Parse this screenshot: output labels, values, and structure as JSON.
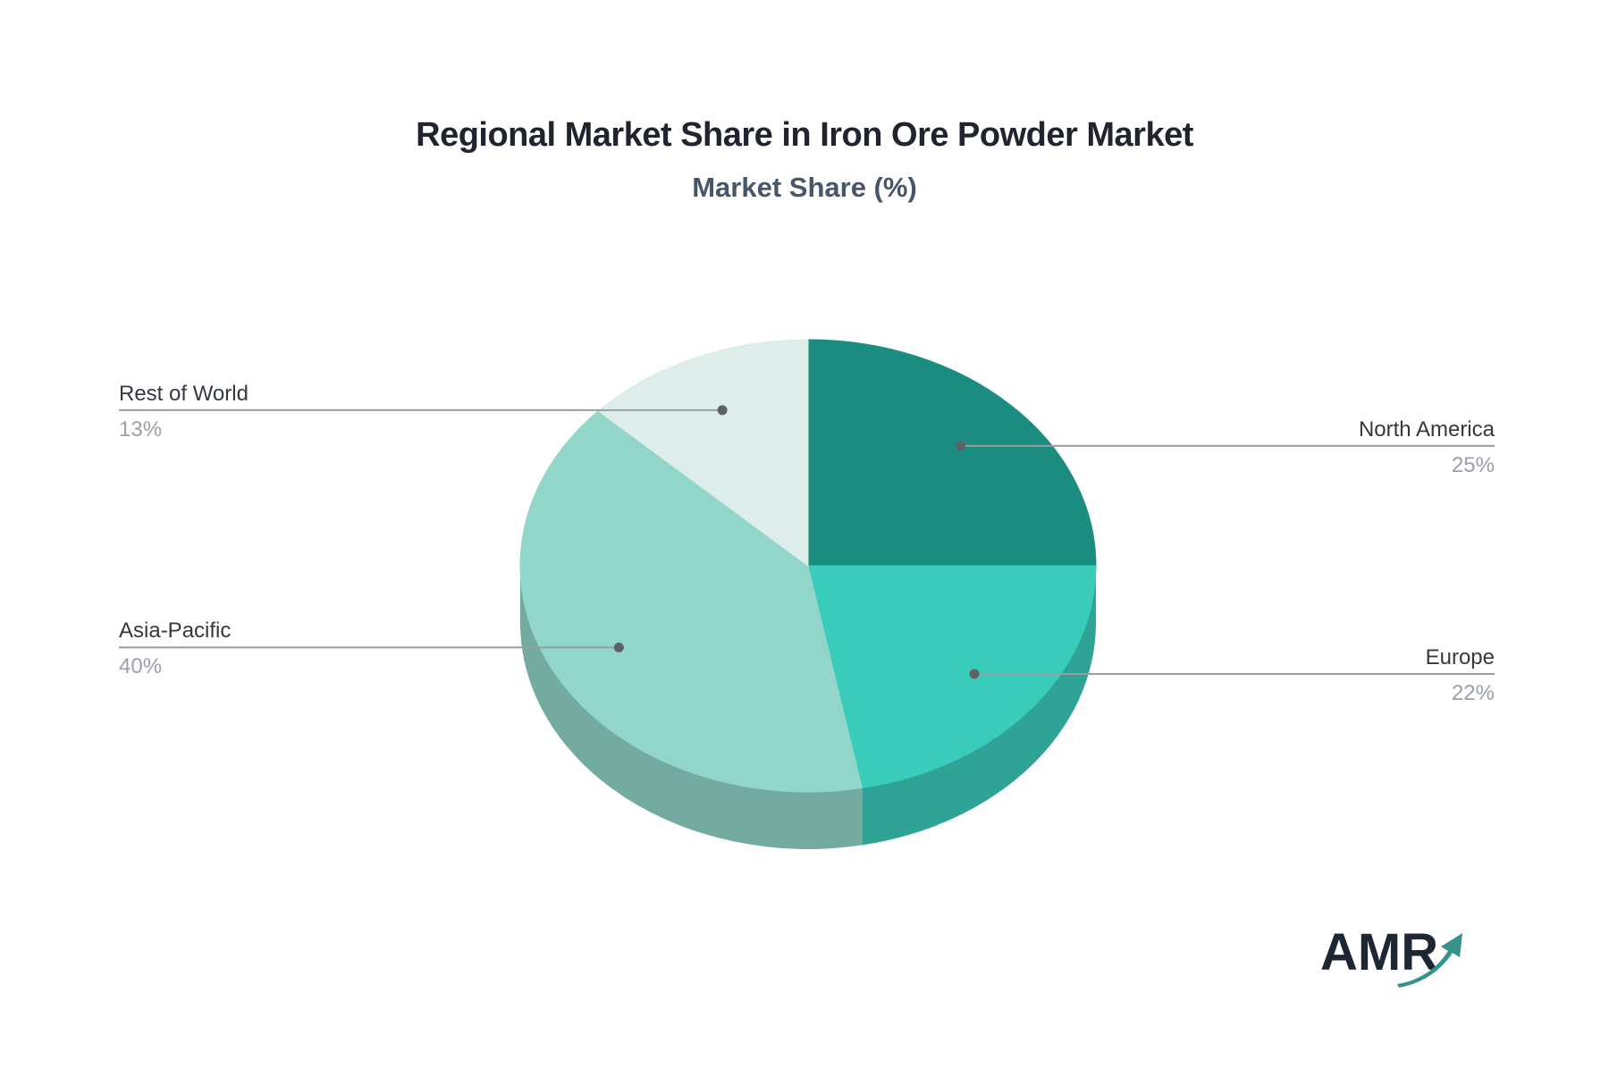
{
  "header": {
    "title": "Regional Market Share in Iron Ore Powder Market",
    "subtitle": "Market Share (%)"
  },
  "chart_data": {
    "type": "pie",
    "style": "3d",
    "title": "Regional Market Share in Iron Ore Powder Market",
    "subtitle": "Market Share (%)",
    "unit": "%",
    "start_angle_deg": 0,
    "direction": "clockwise",
    "legend_position": "callout-labels",
    "slices": [
      {
        "label": "North America",
        "value": 25,
        "display": "25%",
        "color": "#1a8c80"
      },
      {
        "label": "Europe",
        "value": 22,
        "display": "22%",
        "color": "#3accbb"
      },
      {
        "label": "Asia-Pacific",
        "value": 40,
        "display": "40%",
        "color": "#91d6c8"
      },
      {
        "label": "Rest of World",
        "value": 13,
        "display": "13%",
        "color": "#dcedea"
      }
    ],
    "leader_line_color": "#999da1",
    "leader_dot_color": "#5d6164",
    "label_color": "#34393e",
    "value_color": "#9aa0a5"
  },
  "logo": {
    "text": "AMR",
    "text_color": "#1c2733",
    "arrow_color": "#35938b",
    "arrow_icon": "trend-up-arrow"
  }
}
